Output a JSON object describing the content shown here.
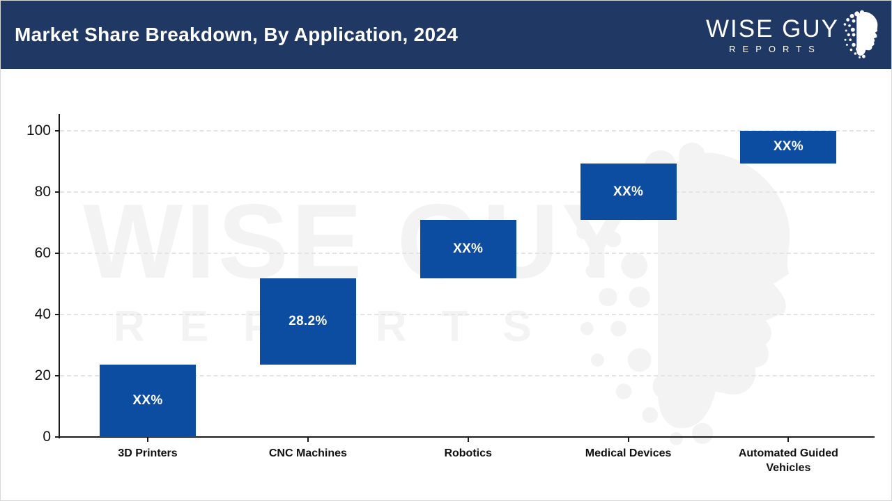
{
  "header": {
    "title": "Market Share Breakdown, By Application, 2024",
    "logo": {
      "wordmark": "WISE GUY",
      "subtitle": "REPORTS"
    }
  },
  "watermark": {
    "wordmark": "WISE GUY",
    "subtitle": "REPORTS"
  },
  "chart_data": {
    "type": "bar",
    "subtype": "waterfall",
    "title": "Market Share Breakdown, By Application, 2024",
    "categories": [
      "3D Printers",
      "CNC Machines",
      "Robotics",
      "Medical Devices",
      "Automated Guided Vehicles"
    ],
    "series": [
      {
        "name": "Market Share (%)",
        "segments": [
          {
            "category": "3D Printers",
            "start": 0,
            "end": 23.7,
            "label": "XX%"
          },
          {
            "category": "CNC Machines",
            "start": 23.7,
            "end": 51.9,
            "value": 28.2,
            "label": "28.2%"
          },
          {
            "category": "Robotics",
            "start": 51.9,
            "end": 70.8,
            "label": "XX%"
          },
          {
            "category": "Medical Devices",
            "start": 70.8,
            "end": 89.4,
            "label": "XX%"
          },
          {
            "category": "Automated Guided Vehicles",
            "start": 89.4,
            "end": 100,
            "label": "XX%"
          }
        ]
      }
    ],
    "xlabel": "",
    "ylabel": "",
    "ylim": [
      0,
      100
    ],
    "yticks": [
      0,
      20,
      40,
      60,
      80,
      100
    ],
    "grid": "horizontal-dashed",
    "legend": "none",
    "bar_color": "#0c4da2",
    "bar_label_color": "#ffffff"
  },
  "colors": {
    "header_bg": "#1f3864",
    "bar": "#0c4da2",
    "grid": "#e4e4e4",
    "axis": "#1a1a1a",
    "watermark": "#f3f3f3"
  }
}
